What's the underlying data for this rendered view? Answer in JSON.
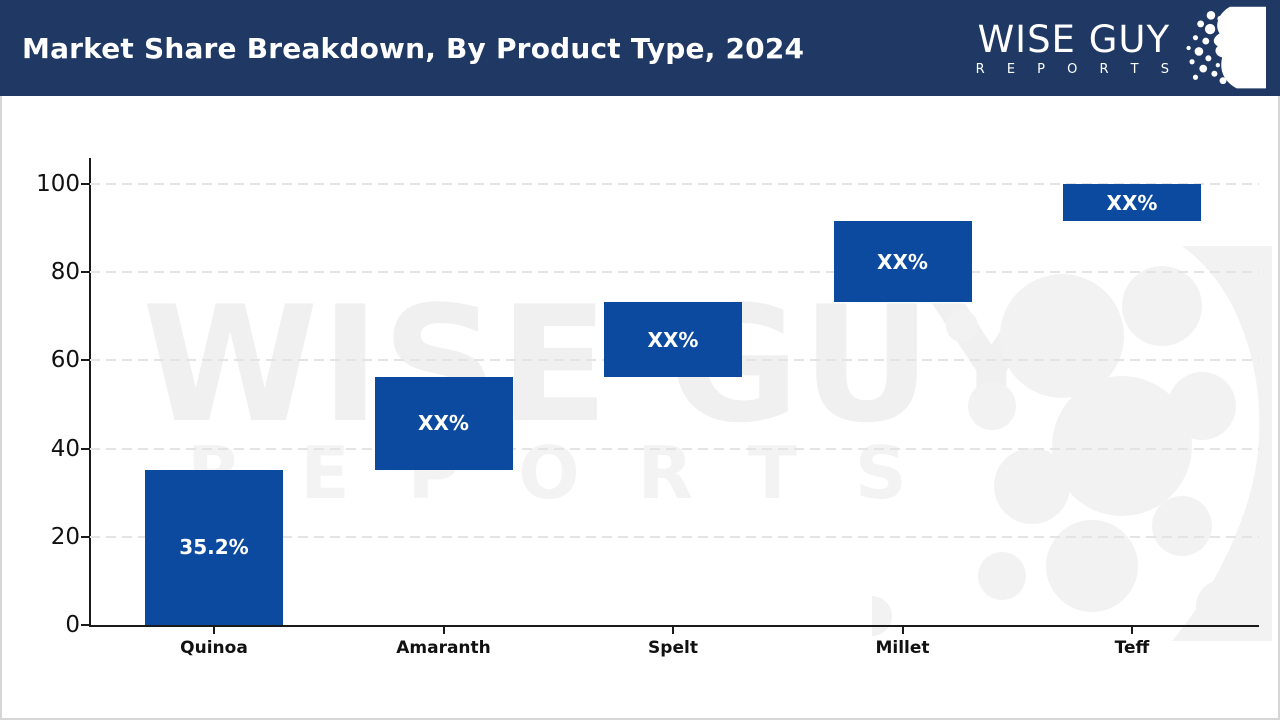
{
  "page": {
    "background": "#ffffff",
    "border_color": "#d6d6d6"
  },
  "header": {
    "background": "#1F3864",
    "title": "Market Share Breakdown, By Product Type, 2024",
    "logo": {
      "primary": "WISE GUY",
      "secondary": "R E P O R T S"
    }
  },
  "watermark": {
    "primary": "WISE GUY",
    "secondary": "REPORTS"
  },
  "chart_data": {
    "type": "bar",
    "subtype": "waterfall",
    "title": "Market Share Breakdown, By Product Type, 2024",
    "categories": [
      "Quinoa",
      "Amaranth",
      "Spelt",
      "Millet",
      "Teff"
    ],
    "bars": [
      {
        "category": "Quinoa",
        "start": 0,
        "end": 35.2,
        "value_label": "35.2%"
      },
      {
        "category": "Amaranth",
        "start": 35.2,
        "end": 56.2,
        "value_label": "XX%"
      },
      {
        "category": "Spelt",
        "start": 56.2,
        "end": 73.2,
        "value_label": "XX%"
      },
      {
        "category": "Millet",
        "start": 73.2,
        "end": 91.5,
        "value_label": "XX%"
      },
      {
        "category": "Teff",
        "start": 91.5,
        "end": 100,
        "value_label": "XX%"
      }
    ],
    "yticks": [
      0,
      20,
      40,
      60,
      80,
      100
    ],
    "ylim": [
      0,
      105
    ],
    "xlabel": "",
    "ylabel": "",
    "grid": true,
    "grid_axis": "y",
    "legend": false,
    "bar_color": "#0C4AA0",
    "value_label_color": "#ffffff",
    "axis_color": "#1a1a1a",
    "gridline_color": "#e4e4e4"
  }
}
